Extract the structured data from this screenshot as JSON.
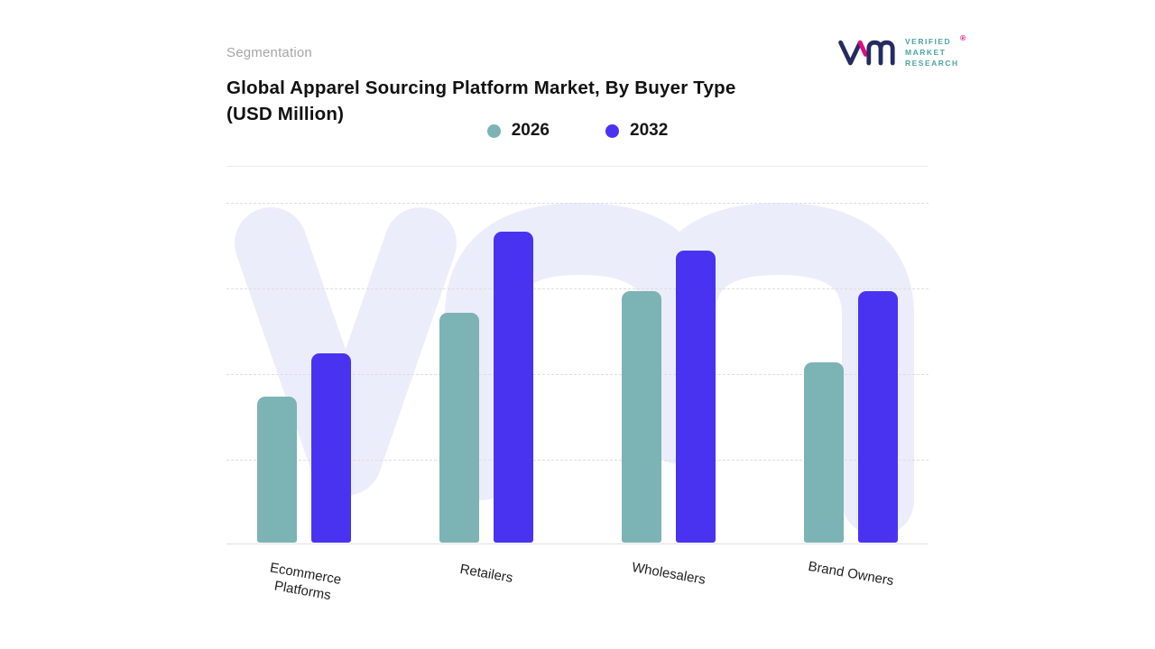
{
  "header": {
    "eyebrow": "Segmentation",
    "logo": {
      "lines": [
        "VERIFIED",
        "MARKET",
        "RESEARCH"
      ],
      "registered_mark": "®",
      "navy": "#262b5f",
      "pink": "#e5097f",
      "text_color": "#4aa5a2"
    }
  },
  "chart_data": {
    "type": "bar",
    "title": "Global Apparel Sourcing Platform Market, By Buyer Type (USD Million)",
    "categories": [
      "Ecommerce Platforms",
      "Retailers",
      "Wholesalers",
      "Brand Owners"
    ],
    "series": [
      {
        "name": "2026",
        "color": "#7cb3b5",
        "values": [
          47,
          74,
          81,
          58
        ]
      },
      {
        "name": "2032",
        "color": "#4a33f0",
        "values": [
          61,
          100,
          94,
          81
        ]
      }
    ],
    "ylim": [
      0,
      100
    ],
    "xlabel": "",
    "ylabel": "",
    "value_axis_visible": false,
    "grid": "horizontal-dashed",
    "legend_position": "top-center",
    "watermark_text": "vm",
    "watermark_color": "#ecedfa"
  }
}
